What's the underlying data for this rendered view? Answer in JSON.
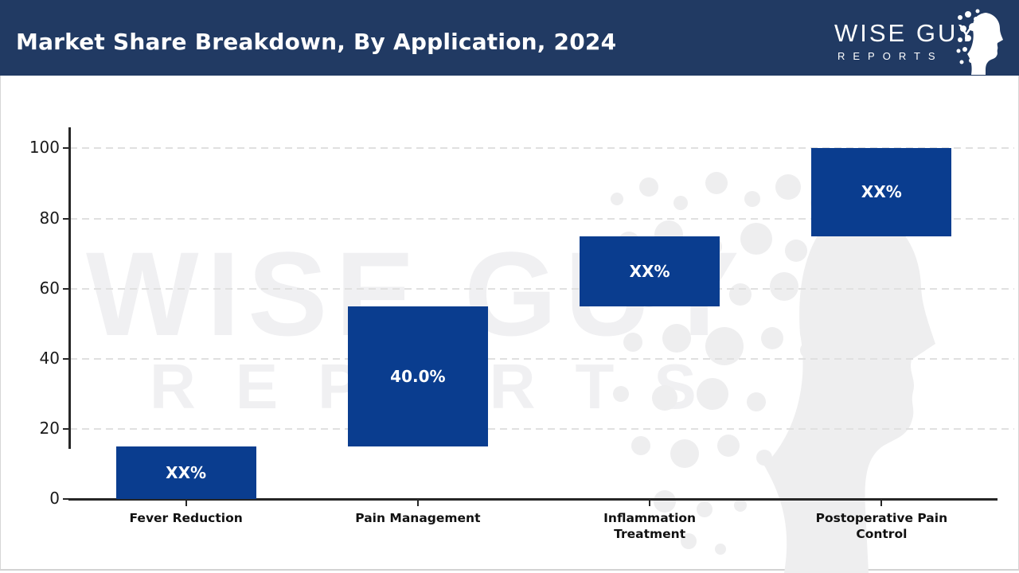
{
  "header": {
    "title": "Market Share Breakdown, By Application, 2024",
    "bg_color": "#213a63",
    "logo": {
      "wordmark": "WISE GUY",
      "sub": "REPORTS"
    }
  },
  "watermark": {
    "line1": "WISE GUY",
    "line2": "REPORTS"
  },
  "chart_data": {
    "type": "bar",
    "subtype": "floating-waterfall",
    "title": "Market Share Breakdown, By Application, 2024",
    "categories": [
      "Fever Reduction",
      "Pain Management",
      "Inflammation Treatment",
      "Postoperative Pain Control"
    ],
    "bars": [
      {
        "category": "Fever Reduction",
        "start": 0,
        "end": 15,
        "label": "XX%"
      },
      {
        "category": "Pain Management",
        "start": 15,
        "end": 55,
        "label": "40.0%"
      },
      {
        "category": "Inflammation Treatment",
        "start": 55,
        "end": 75,
        "label": "XX%"
      },
      {
        "category": "Postoperative Pain Control",
        "start": 75,
        "end": 100,
        "label": "XX%"
      }
    ],
    "yticks": [
      0,
      20,
      40,
      60,
      80,
      100
    ],
    "ylim": [
      0,
      106
    ],
    "xlabel": "",
    "ylabel": "",
    "bar_color": "#0a3d8f",
    "bar_label_color": "#ffffff",
    "grid": "horizontal-dashed",
    "legend": "none"
  }
}
